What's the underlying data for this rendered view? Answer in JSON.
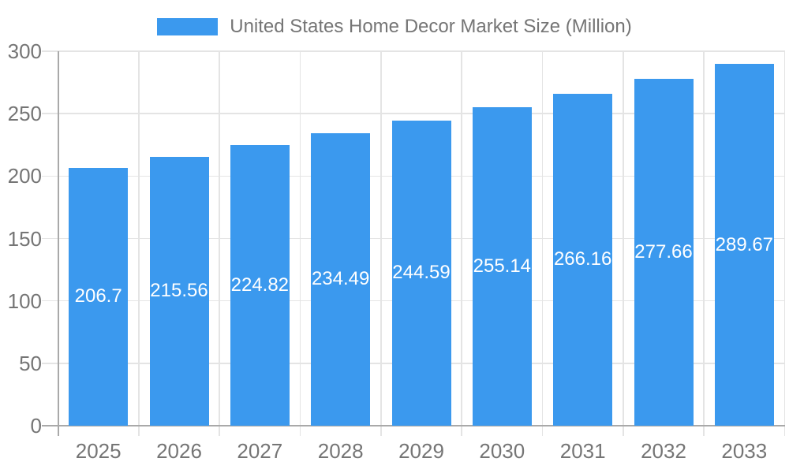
{
  "legend": {
    "label": "United States Home Decor Market Size (Million)"
  },
  "chart_data": {
    "type": "bar",
    "title": "United States Home Decor Market Size (Million)",
    "categories": [
      "2025",
      "2026",
      "2027",
      "2028",
      "2029",
      "2030",
      "2031",
      "2032",
      "2033"
    ],
    "values": [
      206.7,
      215.56,
      224.82,
      234.49,
      244.59,
      255.14,
      266.16,
      277.66,
      289.67
    ],
    "value_labels": [
      "206.7",
      "215.56",
      "224.82",
      "234.49",
      "244.59",
      "255.14",
      "266.16",
      "277.66",
      "289.67"
    ],
    "xlabel": "",
    "ylabel": "",
    "ylim": [
      0,
      300
    ],
    "y_ticks": [
      0,
      50,
      100,
      150,
      200,
      250,
      300
    ],
    "grid": true,
    "legend_position": "top",
    "colors": {
      "bar": "#3b99ee",
      "label_text": "#757575",
      "value_text": "#ffffff",
      "gridline": "#e4e4e4",
      "axis": "#a9a9a9",
      "background": "#ffffff"
    }
  }
}
